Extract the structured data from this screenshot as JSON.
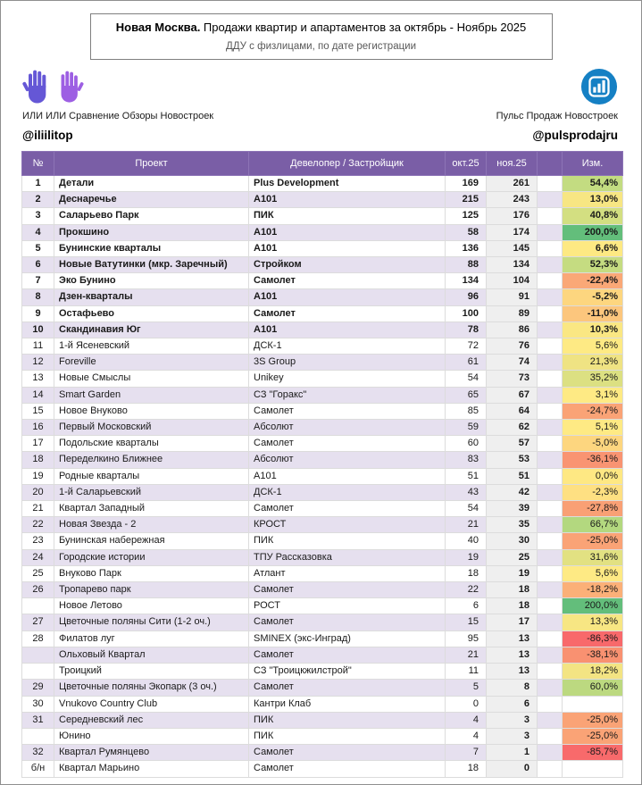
{
  "header": {
    "title_bold": "Новая Москва.",
    "title_rest": " Продажи квартир и апартаментов за октябрь - Ноябрь 2025",
    "subtitle": "ДДУ с физлицами, по дате регистрации"
  },
  "brands": {
    "left": {
      "caption": "ИЛИ ИЛИ Сравнение Обзоры Новостроек",
      "handle": "@iliilitop",
      "icon": "two-raised-hands-icon",
      "hand_color_1": "#6557D6",
      "hand_color_2": "#9D5FE3"
    },
    "right": {
      "caption": "Пульс Продаж Новостроек",
      "handle": "@pulsprodajru",
      "icon": "bar-chart-circle-icon",
      "circle_color": "#1580C4"
    }
  },
  "table": {
    "columns": {
      "num": "№",
      "project": "Проект",
      "developer": "Девелопер / Застройщик",
      "oct": "окт.25",
      "nov": "ноя.25",
      "change": "Изм."
    },
    "colors": {
      "header_bg": "#7A5EA6",
      "stripe_bg": "#E6E0EF",
      "nov_bg": "#EFEFEF",
      "scale_min": "#F8696B",
      "scale_mid": "#FFEB84",
      "scale_max": "#63BE7B"
    },
    "rows": [
      {
        "num": "1",
        "project": "Детали",
        "developer": "Plus Development",
        "oct": "169",
        "nov": "261",
        "change": "54,4%",
        "change_color": "#C3DC81",
        "bold": true
      },
      {
        "num": "2",
        "project": "Деснаречье",
        "developer": "А101",
        "oct": "215",
        "nov": "243",
        "change": "13,0%",
        "change_color": "#F7E683",
        "bold": true
      },
      {
        "num": "3",
        "project": "Саларьево Парк",
        "developer": "ПИК",
        "oct": "125",
        "nov": "176",
        "change": "40,8%",
        "change_color": "#D3DF81",
        "bold": true
      },
      {
        "num": "4",
        "project": "Прокшино",
        "developer": "А101",
        "oct": "58",
        "nov": "174",
        "change": "200,0%",
        "change_color": "#63BE7B",
        "bold": true
      },
      {
        "num": "5",
        "project": "Бунинские кварталы",
        "developer": "А101",
        "oct": "136",
        "nov": "145",
        "change": "6,6%",
        "change_color": "#FDE983",
        "bold": true
      },
      {
        "num": "6",
        "project": "Новые Ватутинки (мкр. Заречный)",
        "developer": "Стройком",
        "oct": "88",
        "nov": "134",
        "change": "52,3%",
        "change_color": "#C5DC81",
        "bold": true
      },
      {
        "num": "7",
        "project": "Эко Бунино",
        "developer": "Самолет",
        "oct": "134",
        "nov": "104",
        "change": "-22,4%",
        "change_color": "#FAA877",
        "bold": true
      },
      {
        "num": "8",
        "project": "Дзен-кварталы",
        "developer": "А101",
        "oct": "96",
        "nov": "91",
        "change": "-5,2%",
        "change_color": "#FDD67F",
        "bold": true
      },
      {
        "num": "9",
        "project": "Остафьево",
        "developer": "Самолет",
        "oct": "100",
        "nov": "89",
        "change": "-11,0%",
        "change_color": "#FCC67D",
        "bold": true
      },
      {
        "num": "10",
        "project": "Скандинавия Юг",
        "developer": "А101",
        "oct": "78",
        "nov": "86",
        "change": "10,3%",
        "change_color": "#FAE783",
        "bold": true
      },
      {
        "num": "11",
        "project": "1-й Ясеневский",
        "developer": "ДСК-1",
        "oct": "72",
        "nov": "76",
        "change": "5,6%",
        "change_color": "#FEEA84",
        "bold": false
      },
      {
        "num": "12",
        "project": "Foreville",
        "developer": "3S Group",
        "oct": "61",
        "nov": "74",
        "change": "21,3%",
        "change_color": "#EFE383",
        "bold": false
      },
      {
        "num": "13",
        "project": "Новые Смыслы",
        "developer": "Unikey",
        "oct": "54",
        "nov": "73",
        "change": "35,2%",
        "change_color": "#DCE082",
        "bold": false
      },
      {
        "num": "14",
        "project": "Smart Garden",
        "developer": "СЗ \"Горакс\"",
        "oct": "65",
        "nov": "67",
        "change": "3,1%",
        "change_color": "#FEEA84",
        "bold": false
      },
      {
        "num": "15",
        "project": "Новое Внуково",
        "developer": "Самолет",
        "oct": "85",
        "nov": "64",
        "change": "-24,7%",
        "change_color": "#FAA376",
        "bold": false
      },
      {
        "num": "16",
        "project": "Первый Московский",
        "developer": "Абсолют",
        "oct": "59",
        "nov": "62",
        "change": "5,1%",
        "change_color": "#FEEA84",
        "bold": false
      },
      {
        "num": "17",
        "project": "Подольские кварталы",
        "developer": "Самолет",
        "oct": "60",
        "nov": "57",
        "change": "-5,0%",
        "change_color": "#FDD67F",
        "bold": false
      },
      {
        "num": "18",
        "project": "Переделкино Ближнее",
        "developer": "Абсолют",
        "oct": "83",
        "nov": "53",
        "change": "-36,1%",
        "change_color": "#F99472",
        "bold": false
      },
      {
        "num": "19",
        "project": "Родные кварталы",
        "developer": "А101",
        "oct": "51",
        "nov": "51",
        "change": "0,0%",
        "change_color": "#FEE883",
        "bold": false
      },
      {
        "num": "20",
        "project": "1-й Саларьевский",
        "developer": "ДСК-1",
        "oct": "43",
        "nov": "42",
        "change": "-2,3%",
        "change_color": "#FEE082",
        "bold": false
      },
      {
        "num": "21",
        "project": "Квартал Западный",
        "developer": "Самолет",
        "oct": "54",
        "nov": "39",
        "change": "-27,8%",
        "change_color": "#F9A075",
        "bold": false
      },
      {
        "num": "22",
        "project": "Новая Звезда - 2",
        "developer": "КРОСТ",
        "oct": "21",
        "nov": "35",
        "change": "66,7%",
        "change_color": "#B3D87F",
        "bold": false
      },
      {
        "num": "23",
        "project": "Бунинская набережная",
        "developer": "ПИК",
        "oct": "40",
        "nov": "30",
        "change": "-25,0%",
        "change_color": "#FAA376",
        "bold": false
      },
      {
        "num": "24",
        "project": "Городские истории",
        "developer": "ТПУ Рассказовка",
        "oct": "19",
        "nov": "25",
        "change": "31,6%",
        "change_color": "#E2E182",
        "bold": false
      },
      {
        "num": "25",
        "project": "Внуково Парк",
        "developer": "Атлант",
        "oct": "18",
        "nov": "19",
        "change": "5,6%",
        "change_color": "#FEEA84",
        "bold": false
      },
      {
        "num": "26",
        "project": "Тропарево парк",
        "developer": "Самолет",
        "oct": "22",
        "nov": "18",
        "change": "-18,2%",
        "change_color": "#FBB078",
        "bold": false
      },
      {
        "num": "",
        "project": "Новое Летово",
        "developer": "РОСТ",
        "oct": "6",
        "nov": "18",
        "change": "200,0%",
        "change_color": "#63BE7B",
        "bold": false
      },
      {
        "num": "27",
        "project": "Цветочные поляны Сити (1-2 оч.)",
        "developer": "Самолет",
        "oct": "15",
        "nov": "17",
        "change": "13,3%",
        "change_color": "#F7E683",
        "bold": false
      },
      {
        "num": "28",
        "project": "Филатов луг",
        "developer": "SMINEX (экс-Инград)",
        "oct": "95",
        "nov": "13",
        "change": "-86,3%",
        "change_color": "#F8696B",
        "bold": false
      },
      {
        "num": "",
        "project": "Ольховый Квартал",
        "developer": "Самолет",
        "oct": "21",
        "nov": "13",
        "change": "-38,1%",
        "change_color": "#F99171",
        "bold": false
      },
      {
        "num": "",
        "project": "Троицкий",
        "developer": "СЗ \"Троицкжилстрой\"",
        "oct": "11",
        "nov": "13",
        "change": "18,2%",
        "change_color": "#F3E483",
        "bold": false
      },
      {
        "num": "29",
        "project": "Цветочные поляны Экопарк (3 оч.)",
        "developer": "Самолет",
        "oct": "5",
        "nov": "8",
        "change": "60,0%",
        "change_color": "#BCD980",
        "bold": false
      },
      {
        "num": "30",
        "project": "Vnukovo Country Club",
        "developer": "Кантри Клаб",
        "oct": "0",
        "nov": "6",
        "change": "",
        "change_color": null,
        "bold": false
      },
      {
        "num": "31",
        "project": "Середневский лес",
        "developer": "ПИК",
        "oct": "4",
        "nov": "3",
        "change": "-25,0%",
        "change_color": "#FAA376",
        "bold": false
      },
      {
        "num": "",
        "project": "Юнино",
        "developer": "ПИК",
        "oct": "4",
        "nov": "3",
        "change": "-25,0%",
        "change_color": "#FAA376",
        "bold": false
      },
      {
        "num": "32",
        "project": "Квартал Румянцево",
        "developer": "Самолет",
        "oct": "7",
        "nov": "1",
        "change": "-85,7%",
        "change_color": "#F86A6B",
        "bold": false
      },
      {
        "num": "б/н",
        "project": "Квартал Марьино",
        "developer": "Самолет",
        "oct": "18",
        "nov": "0",
        "change": "",
        "change_color": null,
        "bold": false
      }
    ]
  }
}
